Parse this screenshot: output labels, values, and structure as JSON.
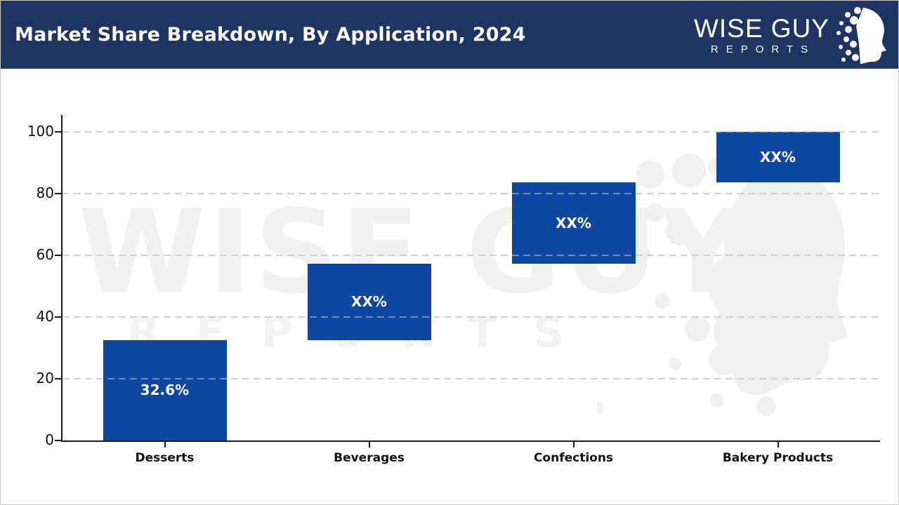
{
  "header": {
    "title": "Market Share Breakdown, By Application, 2024",
    "bg_color": "#1e3462",
    "text_color": "#ffffff",
    "logo": {
      "line1": "WISE GUY",
      "line2": "REPORTS"
    }
  },
  "watermark": {
    "line1": "WISE GUY",
    "line2": "REPORTS"
  },
  "chart_data": {
    "type": "bar",
    "variant": "floating-waterfall-bars",
    "title": "Market Share Breakdown, By Application, 2024",
    "categories": [
      "Desserts",
      "Beverages",
      "Confections",
      "Bakery Products"
    ],
    "segments": [
      {
        "category": "Desserts",
        "start": 0,
        "end": 32.6,
        "value": 32.6,
        "label": "32.6%"
      },
      {
        "category": "Beverages",
        "start": 32.6,
        "end": 57.2,
        "value": 24.6,
        "label": "XX%"
      },
      {
        "category": "Confections",
        "start": 57.2,
        "end": 83.6,
        "value": 26.4,
        "label": "XX%"
      },
      {
        "category": "Bakery Products",
        "start": 83.6,
        "end": 100,
        "value": 16.4,
        "label": "XX%"
      }
    ],
    "y_ticks": [
      0,
      20,
      40,
      60,
      80,
      100
    ],
    "ylim": [
      0,
      105
    ],
    "xlabel": "",
    "ylabel": "",
    "grid": "dashed horizontal gridlines",
    "legend": "none",
    "bar_color": "#0d47a1",
    "bar_label_color": "#ffffff",
    "axis_color": "#1a1a1a"
  }
}
